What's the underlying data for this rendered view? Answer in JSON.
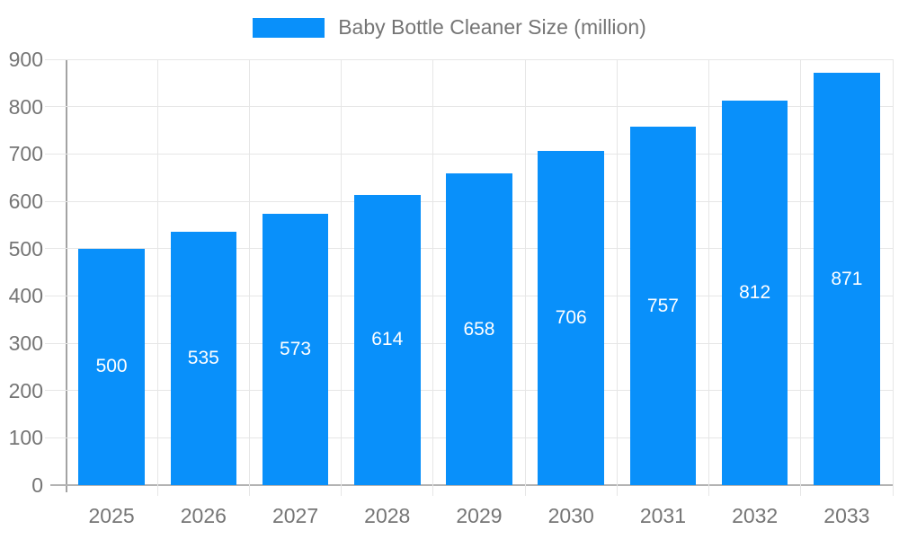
{
  "legend": {
    "label": "Baby Bottle Cleaner Size (million)"
  },
  "colors": {
    "bar": "#0990fa",
    "bar_label": "#ffffff",
    "axis_text": "#757575",
    "gridline": "#e6e6e6",
    "axis_line": "#a3a3a3",
    "background": "#ffffff"
  },
  "chart_data": {
    "type": "bar",
    "title": "Baby Bottle Cleaner Size (million)",
    "categories": [
      "2025",
      "2026",
      "2027",
      "2028",
      "2029",
      "2030",
      "2031",
      "2032",
      "2033"
    ],
    "values": [
      500,
      535,
      573,
      614,
      658,
      706,
      757,
      812,
      871
    ],
    "xlabel": "",
    "ylabel": "",
    "ylim": [
      0,
      900
    ],
    "ytick_step": 100,
    "ytick_labels": [
      "0",
      "100",
      "200",
      "300",
      "400",
      "500",
      "600",
      "700",
      "800",
      "900"
    ],
    "grid": true,
    "legend_position": "top-center",
    "value_labels_position": "center-inside",
    "bar_band_fraction": 0.72
  }
}
